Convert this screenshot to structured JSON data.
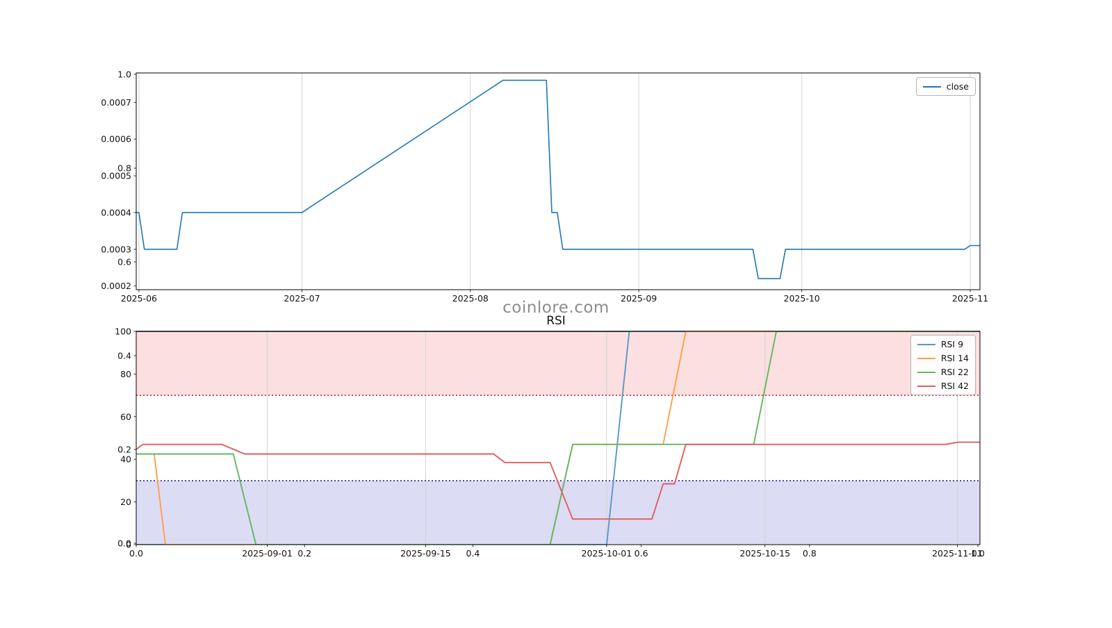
{
  "watermark": "coinlore.com",
  "overlay_axis": {
    "y_ticks": [
      {
        "label": "1.0",
        "value": 1.0
      },
      {
        "label": "0.8",
        "value": 0.8
      },
      {
        "label": "0.6",
        "value": 0.6
      },
      {
        "label": "0.4",
        "value": 0.4
      },
      {
        "label": "0.2",
        "value": 0.2
      },
      {
        "label": "0.0",
        "value": 0.0
      }
    ],
    "x_ticks": [
      {
        "label": "0.0",
        "value": 0.0
      },
      {
        "label": "0.2",
        "value": 0.2
      },
      {
        "label": "0.4",
        "value": 0.4
      },
      {
        "label": "0.6",
        "value": 0.6
      },
      {
        "label": "0.8",
        "value": 0.8
      },
      {
        "label": "1.0",
        "value": 1.0
      }
    ]
  },
  "chart_data": [
    {
      "id": "price",
      "type": "line",
      "title": "",
      "xlim": [
        "2025-05-31T12:00:00Z",
        "2025-11-02T19:00:00Z"
      ],
      "ylim": [
        0.00019,
        0.00078
      ],
      "grid": "vertical",
      "x_ticks": [
        {
          "label": "2025-06",
          "value": "2025-06-01"
        },
        {
          "label": "2025-07",
          "value": "2025-07-01"
        },
        {
          "label": "2025-08",
          "value": "2025-08-01"
        },
        {
          "label": "2025-09",
          "value": "2025-09-01"
        },
        {
          "label": "2025-10",
          "value": "2025-10-01"
        },
        {
          "label": "2025-11",
          "value": "2025-11-01"
        }
      ],
      "y_ticks": [
        {
          "label": "0.0002",
          "value": 0.0002
        },
        {
          "label": "0.0003",
          "value": 0.0003
        },
        {
          "label": "0.0004",
          "value": 0.0004
        },
        {
          "label": "0.0005",
          "value": 0.0005
        },
        {
          "label": "0.0006",
          "value": 0.0006
        },
        {
          "label": "0.0007",
          "value": 0.0007
        }
      ],
      "legend": {
        "position": "top-right",
        "entries": [
          {
            "label": "close",
            "color": "#1f77b4"
          }
        ]
      },
      "series": [
        {
          "name": "close",
          "color": "#1f77b4",
          "width": 1.6,
          "points": [
            [
              "2025-05-31",
              0.0004
            ],
            [
              "2025-06-01",
              0.0004
            ],
            [
              "2025-06-02",
              0.0003
            ],
            [
              "2025-06-08",
              0.0003
            ],
            [
              "2025-06-09",
              0.0004
            ],
            [
              "2025-07-01",
              0.0004
            ],
            [
              "2025-08-07",
              0.00076
            ],
            [
              "2025-08-15",
              0.00076
            ],
            [
              "2025-08-16",
              0.0004
            ],
            [
              "2025-08-17",
              0.0004
            ],
            [
              "2025-08-18",
              0.0003
            ],
            [
              "2025-09-22",
              0.0003
            ],
            [
              "2025-09-23",
              0.00022
            ],
            [
              "2025-09-27",
              0.00022
            ],
            [
              "2025-09-28",
              0.0003
            ],
            [
              "2025-10-31",
              0.0003
            ],
            [
              "2025-11-01",
              0.00031
            ],
            [
              "2025-11-03",
              0.00031
            ]
          ]
        }
      ]
    },
    {
      "id": "rsi",
      "type": "line",
      "title": "RSI",
      "xlim": [
        "2025-08-20T10:00:00Z",
        "2025-11-03T00:00:00Z"
      ],
      "ylim": [
        0,
        100
      ],
      "grid": "vertical",
      "x_ticks": [
        {
          "label": "2025-09-01",
          "value": "2025-09-01"
        },
        {
          "label": "2025-09-15",
          "value": "2025-09-15"
        },
        {
          "label": "2025-10-01",
          "value": "2025-10-01"
        },
        {
          "label": "2025-10-15",
          "value": "2025-10-15"
        },
        {
          "label": "2025-11-01",
          "value": "2025-11-01"
        }
      ],
      "y_ticks": [
        {
          "label": "0",
          "value": 0
        },
        {
          "label": "20",
          "value": 20
        },
        {
          "label": "40",
          "value": 40
        },
        {
          "label": "60",
          "value": 60
        },
        {
          "label": "80",
          "value": 80
        },
        {
          "label": "100",
          "value": 100
        }
      ],
      "bands": [
        {
          "from": 70,
          "to": 100,
          "color": "#fbdfe1",
          "name": "overbought-band"
        },
        {
          "from": 0,
          "to": 30,
          "color": "#dcdcf4",
          "name": "oversold-band"
        }
      ],
      "hlines": [
        {
          "value": 100,
          "color": "#000000",
          "style": "solid",
          "width": 1.5
        },
        {
          "value": 70,
          "color": "#c00000",
          "style": "dotted",
          "width": 1.4
        },
        {
          "value": 30,
          "color": "#00008b",
          "style": "dotted",
          "width": 1.4
        }
      ],
      "legend": {
        "position": "top-right",
        "entries": [
          {
            "label": "RSI 9",
            "color": "#5799c7"
          },
          {
            "label": "RSI 14",
            "color": "#ff9f4a"
          },
          {
            "label": "RSI 22",
            "color": "#61b861"
          },
          {
            "label": "RSI 42",
            "color": "#e05d5e"
          }
        ]
      },
      "series": [
        {
          "name": "RSI 9",
          "color": "#5799c7",
          "width": 1.9,
          "points": [
            [
              "2025-08-20",
              0
            ],
            [
              "2025-10-01",
              0
            ],
            [
              "2025-10-03",
              100
            ],
            [
              "2025-11-03",
              100
            ]
          ]
        },
        {
          "name": "RSI 14",
          "color": "#ff9f4a",
          "width": 1.9,
          "points": [
            [
              "2025-08-20",
              42.5
            ],
            [
              "2025-08-22",
              42.5
            ],
            [
              "2025-08-23",
              0
            ],
            [
              "2025-09-26",
              0
            ],
            [
              "2025-09-28",
              47
            ],
            [
              "2025-10-06",
              47
            ],
            [
              "2025-10-08",
              100
            ],
            [
              "2025-11-03",
              100
            ]
          ]
        },
        {
          "name": "RSI 22",
          "color": "#61b861",
          "width": 1.9,
          "points": [
            [
              "2025-08-20",
              42.5
            ],
            [
              "2025-08-29",
              42.5
            ],
            [
              "2025-08-31",
              0
            ],
            [
              "2025-09-26",
              0
            ],
            [
              "2025-09-28",
              47
            ],
            [
              "2025-10-14",
              47
            ],
            [
              "2025-10-16",
              100
            ],
            [
              "2025-11-03",
              100
            ]
          ]
        },
        {
          "name": "RSI 42",
          "color": "#e05d5e",
          "width": 1.9,
          "points": [
            [
              "2025-08-20",
              43
            ],
            [
              "2025-08-21",
              47
            ],
            [
              "2025-08-28",
              47
            ],
            [
              "2025-08-30",
              42.5
            ],
            [
              "2025-09-21",
              42.5
            ],
            [
              "2025-09-22",
              38.5
            ],
            [
              "2025-09-26",
              38.5
            ],
            [
              "2025-09-28",
              12
            ],
            [
              "2025-10-05",
              12
            ],
            [
              "2025-10-06",
              28.5
            ],
            [
              "2025-10-07",
              28.5
            ],
            [
              "2025-10-08",
              47
            ],
            [
              "2025-10-31",
              47
            ],
            [
              "2025-11-01",
              48
            ],
            [
              "2025-11-03",
              48
            ]
          ]
        }
      ]
    }
  ]
}
